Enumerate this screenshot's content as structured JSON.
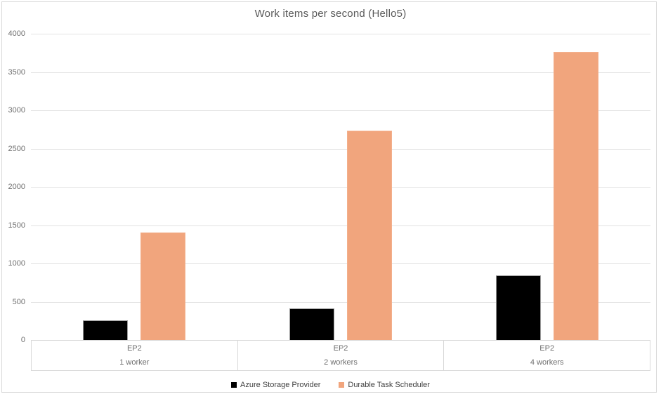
{
  "chart_data": {
    "type": "bar",
    "title": "Work items per second (Hello5)",
    "categories": [
      {
        "group": "EP2",
        "workers": "1 worker"
      },
      {
        "group": "EP2",
        "workers": "2 workers"
      },
      {
        "group": "EP2",
        "workers": "4 workers"
      }
    ],
    "series": [
      {
        "name": "Azure Storage Provider",
        "color": "#000000",
        "border_color": "#9B9B9B",
        "values": [
          260,
          415,
          840
        ]
      },
      {
        "name": "Durable Task Scheduler",
        "color": "#F1A57D",
        "border_color": "#F3B08C",
        "values": [
          1400,
          2730,
          3765
        ]
      }
    ],
    "xlabel": "",
    "ylabel": "",
    "ylim": [
      0,
      4000
    ],
    "yticks": [
      0,
      500,
      1000,
      1500,
      2000,
      2500,
      3000,
      3500,
      4000
    ],
    "grid": true,
    "legend_position": "bottom"
  },
  "style": {
    "background": "#FFFFFF",
    "frame_border": "#D9D9D9",
    "grid_color": "#E2E2E2",
    "title_color": "#595959",
    "axis_text_color": "#6E6E6E",
    "legend_text_color": "#404040"
  }
}
